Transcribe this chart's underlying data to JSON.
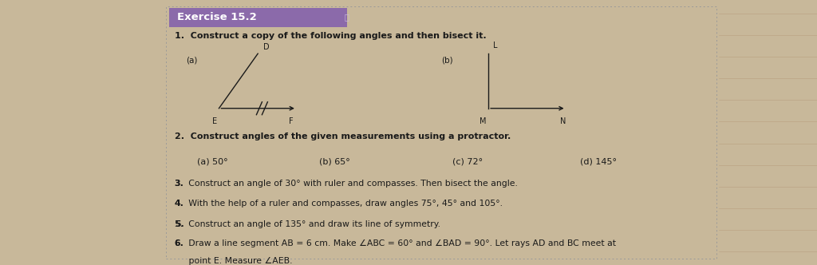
{
  "bg_left_color": "#c8b89a",
  "bg_right_color": "#e8e0d0",
  "page_bg": "#f0ece4",
  "title_text": "Exercise 15.2",
  "title_bg": "#8b6aaa",
  "title_color": "#ffffff",
  "title_fontsize": 9.5,
  "q1_text": "1.  Construct a copy of the following angles and then bisect it.",
  "label_a": "(a)",
  "label_b": "(b)",
  "q2_header": "2.  Construct angles of the given measurements using a protractor.",
  "q2_items": [
    "(a) 50°",
    "(b) 65°",
    "(c) 72°",
    "(d) 145°"
  ],
  "q3_text": "3.  Construct an angle of 30° with ruler and compasses. Then bisect the angle.",
  "q4_text": "4.  With the help of a ruler and compasses, draw angles 75°, 45° and 105°.",
  "q5_text": "5.  Construct an angle of 135° and draw its line of symmetry.",
  "q6_text": "6.  Draw a line segment AB = 6 cm. Make ∠ABC = 60° and ∠BAD = 90°. Let rays AD and BC meet at",
  "q6_text2": "     point E. Measure ∠AEB.",
  "text_color": "#1a1a1a",
  "line_color": "#1a1a1a",
  "dotted_color": "#999999",
  "right_ruled_color": "#c8b090"
}
